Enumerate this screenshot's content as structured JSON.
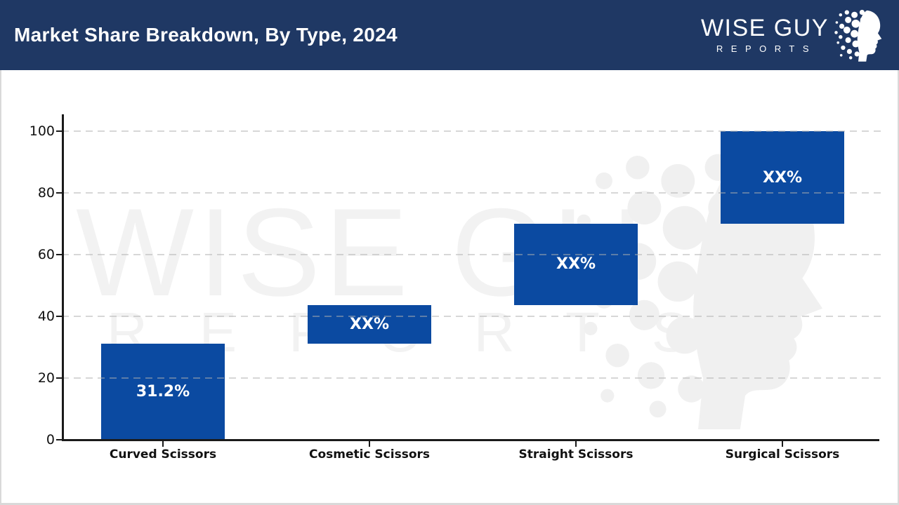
{
  "header": {
    "title": "Market Share Breakdown, By Type, 2024",
    "background": "#1f3864",
    "logo": {
      "line1": "WISE GUY",
      "line2": "REPORTS"
    }
  },
  "watermark": {
    "line1": "WISE GU",
    "line2": "REPORTS"
  },
  "chart_data": {
    "type": "bar",
    "subtype": "waterfall",
    "title": "Market Share Breakdown, By Type, 2024",
    "categories": [
      "Curved Scissors",
      "Cosmetic Scissors",
      "Straight Scissors",
      "Surgical Scissors"
    ],
    "series": [
      {
        "name": "Market Share",
        "segments": [
          {
            "start": 0,
            "end": 31.2
          },
          {
            "start": 31.2,
            "end": 43.7
          },
          {
            "start": 43.7,
            "end": 70.0
          },
          {
            "start": 70.0,
            "end": 100.0
          }
        ],
        "increments": [
          31.2,
          12.5,
          26.3,
          30.0
        ]
      }
    ],
    "bar_labels": [
      "31.2%",
      "XX%",
      "XX%",
      "XX%"
    ],
    "xlabel": "",
    "ylabel": "",
    "yticks": [
      0,
      20,
      40,
      60,
      80,
      100
    ],
    "ylim": [
      0,
      105
    ],
    "grid": "horizontal dashed",
    "legend": "none",
    "bar_color": "#0b4aa1",
    "bar_label_color": "#ffffff",
    "grid_color": "#afafaf",
    "axis_color": "#1a1a1a"
  }
}
